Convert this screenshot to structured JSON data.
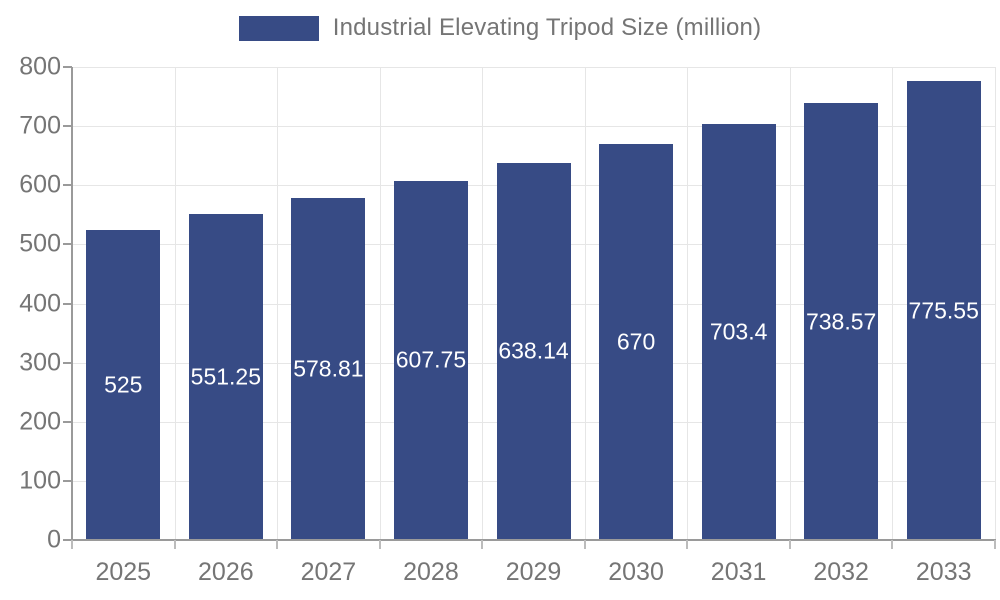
{
  "legend": {
    "label": "Industrial Elevating Tripod Size (million)"
  },
  "colors": {
    "bar": "#374B85",
    "grid": "#e6e6e6",
    "axis": "#9a9a9a",
    "tick_text": "#757575",
    "bar_label_text": "#ffffff",
    "background": "#ffffff"
  },
  "chart_data": {
    "type": "bar",
    "title": "Industrial Elevating Tripod Size (million)",
    "categories": [
      "2025",
      "2026",
      "2027",
      "2028",
      "2029",
      "2030",
      "2031",
      "2032",
      "2033"
    ],
    "values": [
      525,
      551.25,
      578.81,
      607.75,
      638.14,
      670,
      703.4,
      738.57,
      775.55
    ],
    "value_labels": [
      "525",
      "551.25",
      "578.81",
      "607.75",
      "638.14",
      "670",
      "703.4",
      "738.57",
      "775.55"
    ],
    "xlabel": "",
    "ylabel": "",
    "ylim": [
      0,
      800
    ],
    "ytick_step": 100,
    "ytick_labels": [
      "0",
      "100",
      "200",
      "300",
      "400",
      "500",
      "600",
      "700",
      "800"
    ],
    "grid": true,
    "legend_position": "top",
    "bar_label_position": "inside-middle"
  }
}
